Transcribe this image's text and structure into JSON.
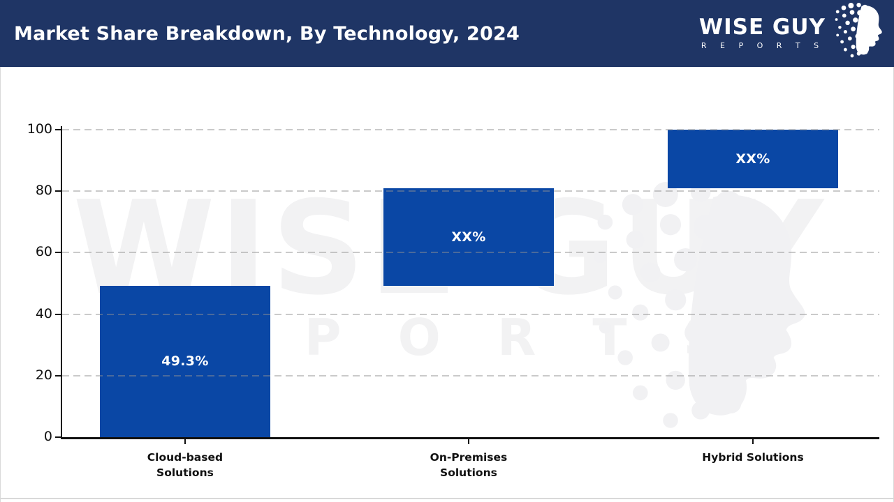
{
  "header": {
    "title": "Market Share Breakdown, By Technology, 2024",
    "bg_color": "#1f3565",
    "logo": {
      "line1": "WISE GUY",
      "line2": "R E P O R T S"
    }
  },
  "watermark": {
    "line1": "WISE GUY",
    "line2": "R E P O R T S"
  },
  "chart_data": {
    "type": "bar",
    "subtype": "waterfall",
    "title": "Market Share Breakdown, By Technology, 2024",
    "categories": [
      "Cloud-based\nSolutions",
      "On-Premises\nSolutions",
      "Hybrid Solutions"
    ],
    "segments": [
      {
        "category": "Cloud-based Solutions",
        "start": 0,
        "end": 49.3,
        "label": "49.3%"
      },
      {
        "category": "On-Premises Solutions",
        "start": 49.3,
        "end": 81,
        "label": "XX%"
      },
      {
        "category": "Hybrid Solutions",
        "start": 81,
        "end": 100,
        "label": "XX%"
      }
    ],
    "xlabel": "",
    "ylabel": "",
    "ylim": [
      0,
      100
    ],
    "yticks": [
      0,
      20,
      40,
      60,
      80,
      100
    ],
    "grid": "dashed-horizontal-over-bars",
    "legend": "none",
    "bar_color": "#0a47a5",
    "bar_label_color": "#ffffff"
  }
}
